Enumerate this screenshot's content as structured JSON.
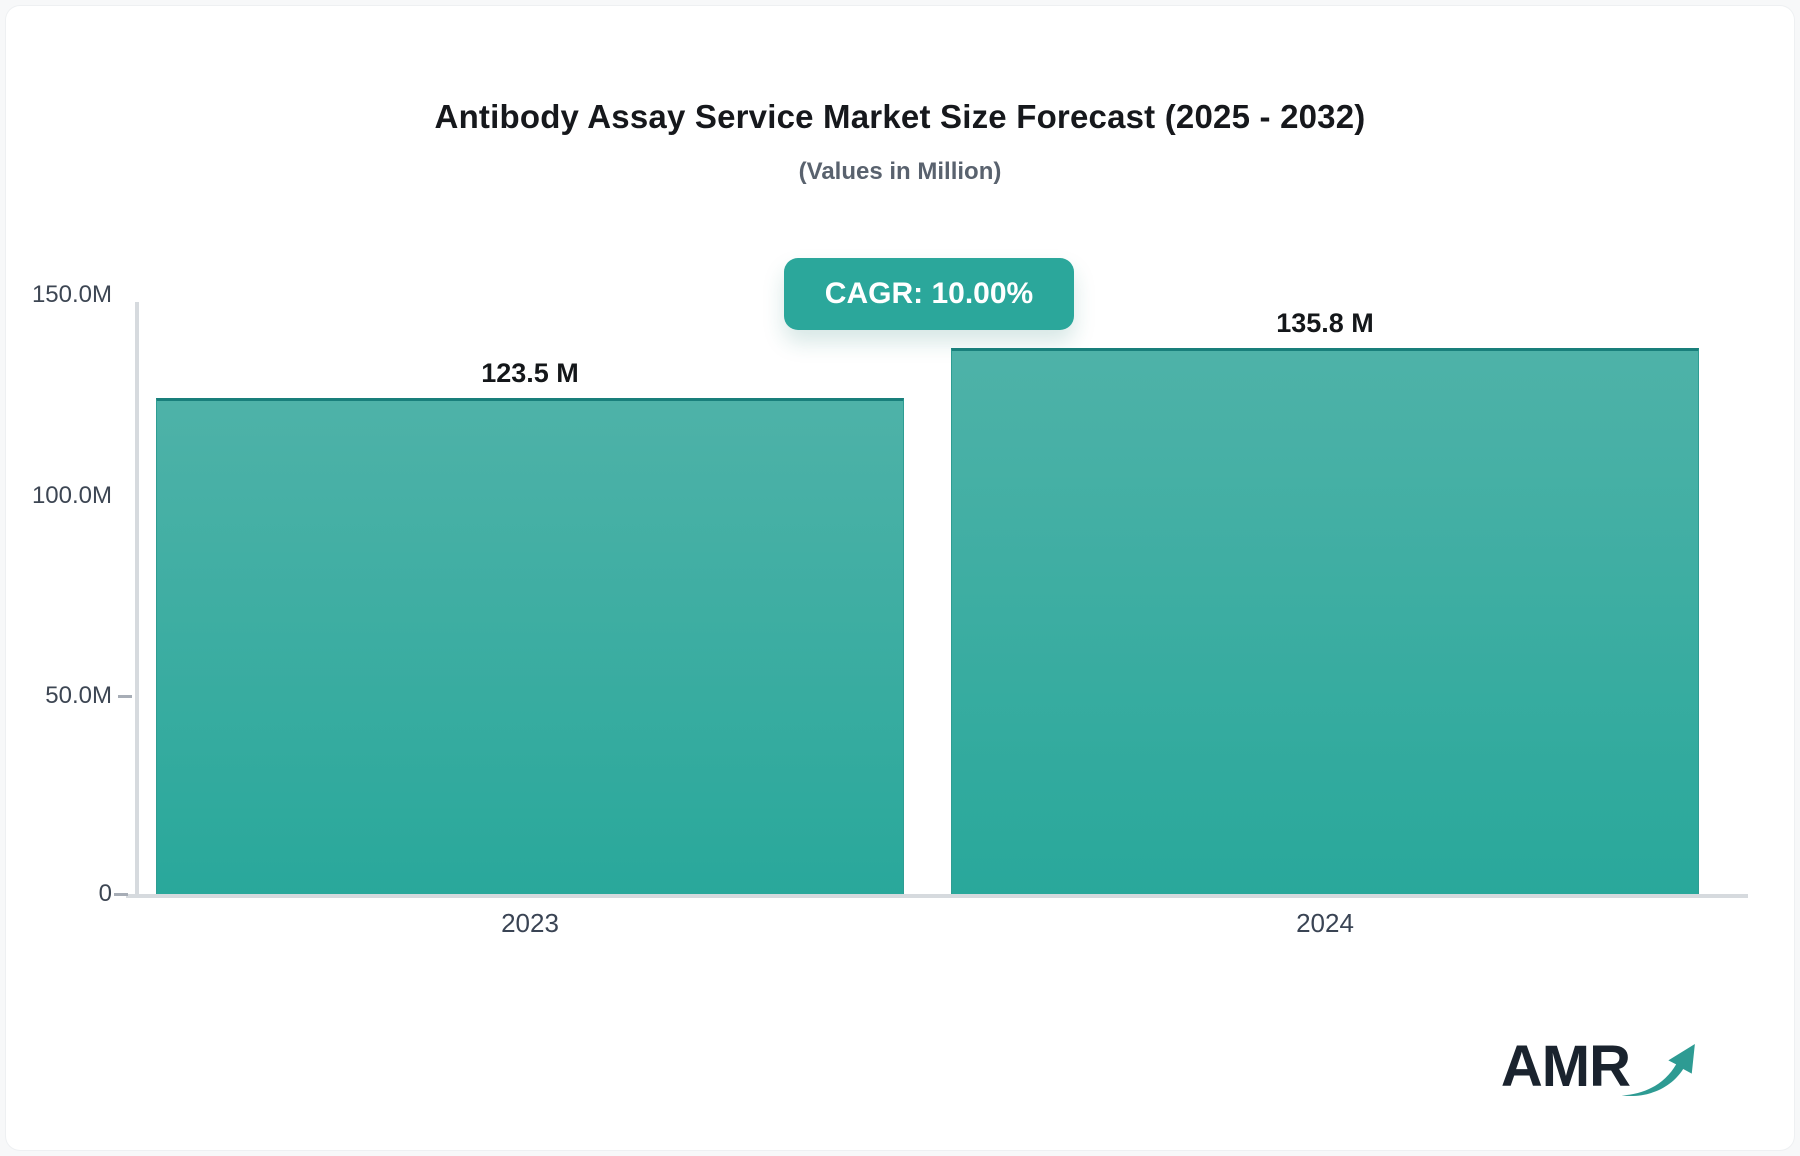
{
  "badge": {
    "label": "CAGR: 10.00%",
    "bg_color": "#2BA79B",
    "text_color": "#FFFFFF"
  },
  "chart_data": {
    "type": "bar",
    "title": "Antibody Assay Service Market Size Forecast (2025 - 2032)",
    "subtitle": "(Values in Million)",
    "categories": [
      "2023",
      "2024"
    ],
    "values": [
      123.5,
      135.8
    ],
    "value_labels": [
      "123.5 M",
      "135.8 M"
    ],
    "cagr_label": "CAGR: 10.00%",
    "xlabel": "",
    "ylabel": "",
    "ylim": [
      0,
      150
    ],
    "yticks": [
      {
        "value": 150,
        "label": "150.0M"
      },
      {
        "value": 100,
        "label": "100.0M"
      },
      {
        "value": 50,
        "label": "50.0M"
      },
      {
        "value": 0,
        "label": "0"
      }
    ],
    "grid": false,
    "legend": false,
    "bar_color_top": "#4EB2A8",
    "bar_color_bottom": "#29A89B",
    "bar_border_color": "#197F7B",
    "axis_color": "#D6DADE"
  },
  "logo": {
    "text": "AMR",
    "text_color": "#1A232E",
    "arrow_color": "#2E9B93"
  }
}
